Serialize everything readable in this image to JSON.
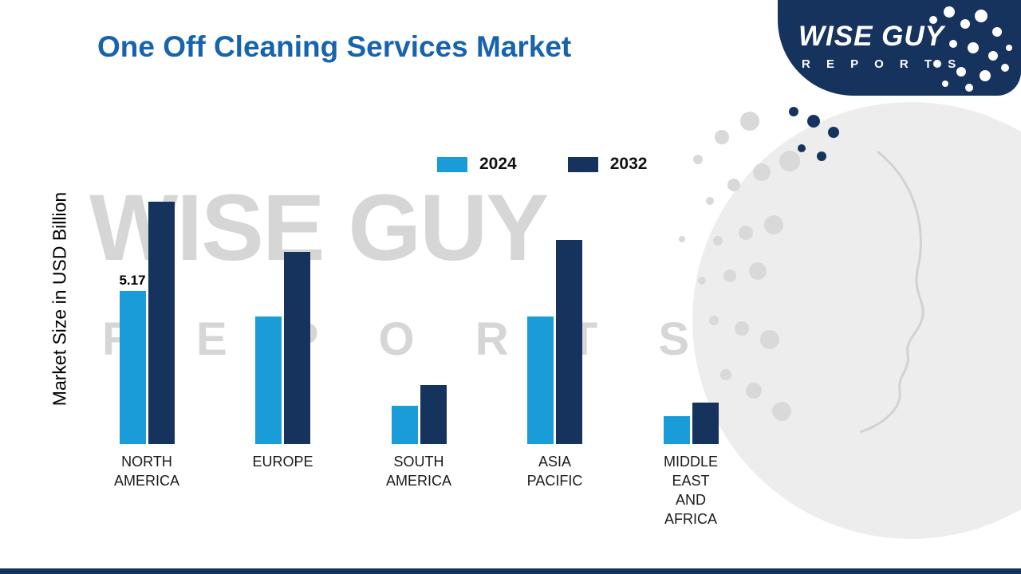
{
  "page": {
    "title": "One Off Cleaning Services Market"
  },
  "logo": {
    "line1": "WISE GUY",
    "line2": "R E P O R T S"
  },
  "watermark": {
    "line1": "WISE GUY",
    "line2": "R E P O R T S"
  },
  "colors": {
    "title_blue": "#1763ae",
    "series_2024": "#1a9cd9",
    "series_2032": "#16335e",
    "logo_navy": "#16335e",
    "watermark_gray": "#d6d6d6",
    "circle_gray": "#ededed",
    "bottom_strip": "#16335e"
  },
  "chart_data": {
    "type": "bar",
    "title": "One Off Cleaning Services Market",
    "xlabel": "",
    "ylabel": "Market Size in USD Billion",
    "unit": "USD Billion",
    "categories": [
      "NORTH\nAMERICA",
      "EUROPE",
      "SOUTH\nAMERICA",
      "ASIA\nPACIFIC",
      "MIDDLE\nEAST\nAND\nAFRICA"
    ],
    "series": [
      {
        "name": "2024",
        "color": "#1a9cd9",
        "values": [
          5.17,
          4.3,
          1.3,
          4.3,
          0.95
        ],
        "data_labels": [
          "5.17",
          null,
          null,
          null,
          null
        ]
      },
      {
        "name": "2032",
        "color": "#16335e",
        "values": [
          8.2,
          6.5,
          2.0,
          6.9,
          1.4
        ],
        "data_labels": [
          null,
          null,
          null,
          null,
          null
        ]
      }
    ],
    "ylim": [
      0,
      9
    ],
    "grid": false,
    "axes_visible": false,
    "legend_position": "top"
  }
}
